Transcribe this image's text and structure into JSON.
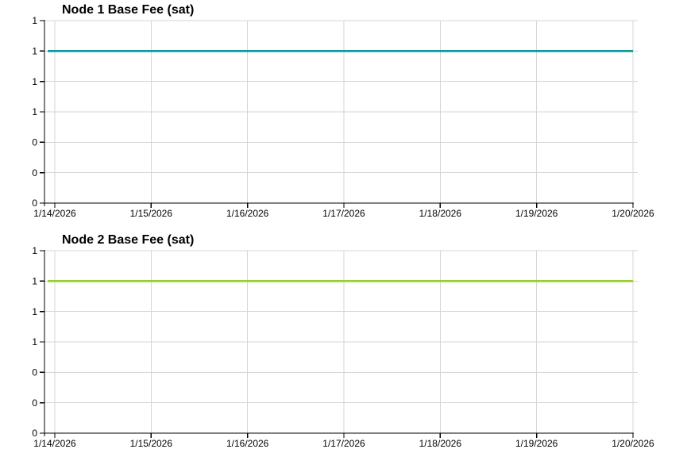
{
  "page": {
    "background": "#ffffff",
    "text_color": "#000000"
  },
  "chart_data": [
    {
      "type": "line",
      "title": "Node 1 Base Fee (sat)",
      "x": [
        "1/14/2026",
        "1/15/2026",
        "1/16/2026",
        "1/17/2026",
        "1/18/2026",
        "1/19/2026",
        "1/20/2026"
      ],
      "series": [
        {
          "name": "Node 1 Base Fee",
          "values": [
            1,
            1,
            1,
            1,
            1,
            1,
            1
          ],
          "color": "#10939a"
        }
      ],
      "xlabel": "",
      "ylabel": "",
      "ylim": [
        0,
        1.2
      ],
      "y_ticks": [
        0,
        0.2,
        0.4,
        0.6,
        0.8,
        1.0,
        1.2
      ],
      "y_tick_labels_bottom_to_top": [
        "0",
        "0",
        "0",
        "1",
        "1",
        "1",
        "1"
      ],
      "grid": true,
      "legend_position": "none",
      "axis_color": "#000000",
      "grid_color": "#d6d6d6",
      "tick_label_color": "#000000",
      "tick_label_size": 12,
      "constant_value": 1
    },
    {
      "type": "line",
      "title": "Node 2 Base Fee (sat)",
      "x": [
        "1/14/2026",
        "1/15/2026",
        "1/16/2026",
        "1/17/2026",
        "1/18/2026",
        "1/19/2026",
        "1/20/2026"
      ],
      "series": [
        {
          "name": "Node 2 Base Fee",
          "values": [
            1,
            1,
            1,
            1,
            1,
            1,
            1
          ],
          "color": "#9acd32"
        }
      ],
      "xlabel": "",
      "ylabel": "",
      "ylim": [
        0,
        1.2
      ],
      "y_ticks": [
        0,
        0.2,
        0.4,
        0.6,
        0.8,
        1.0,
        1.2
      ],
      "y_tick_labels_bottom_to_top": [
        "0",
        "0",
        "0",
        "1",
        "1",
        "1",
        "1"
      ],
      "grid": true,
      "legend_position": "none",
      "axis_color": "#000000",
      "grid_color": "#d6d6d6",
      "tick_label_color": "#000000",
      "tick_label_size": 12,
      "constant_value": 1
    }
  ]
}
